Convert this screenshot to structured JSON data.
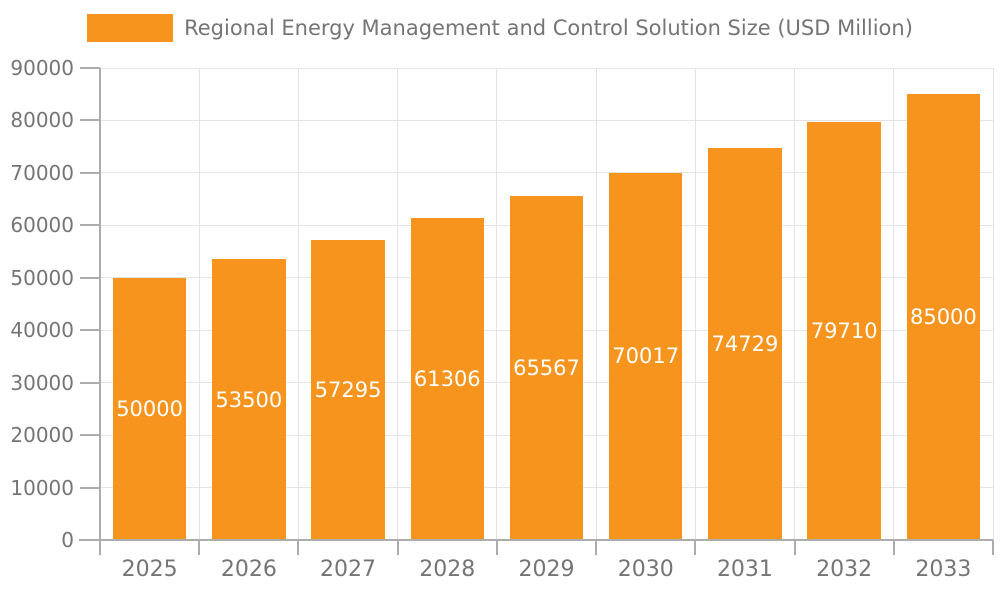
{
  "window": {
    "background": "#FFFFFF"
  },
  "legend": {
    "position": "top-center",
    "items": [
      {
        "label": "Regional Energy Management and Control Solution Size (USD Million)",
        "swatch_color": "#F7941E"
      }
    ]
  },
  "chart_data": {
    "type": "bar",
    "title": "Regional Energy Management and Control Solution Size (USD Million)",
    "xlabel": "",
    "ylabel": "",
    "categories": [
      "2025",
      "2026",
      "2027",
      "2028",
      "2029",
      "2030",
      "2031",
      "2032",
      "2033"
    ],
    "values": [
      50000,
      53500,
      57295,
      61306,
      65567,
      70017,
      74729,
      79710,
      85000
    ],
    "value_labels": [
      "50000",
      "53500",
      "57295",
      "61306",
      "65567",
      "70017",
      "74729",
      "79710",
      "85000"
    ],
    "ylim": [
      0,
      90000
    ],
    "y_ticks": [
      0,
      10000,
      20000,
      30000,
      40000,
      50000,
      60000,
      70000,
      80000,
      90000
    ],
    "y_tick_labels": [
      "0",
      "10000",
      "20000",
      "30000",
      "40000",
      "50000",
      "60000",
      "70000",
      "80000",
      "90000"
    ],
    "grid": true,
    "legend_position": "top",
    "bar_slot_fraction": 0.74,
    "colors": {
      "bar": "#F7941E",
      "bar_label": "#FFFFFF",
      "axis_text": "#757575",
      "axis_line": "#ADADAD",
      "gridline": "#E4E4E4",
      "background": "#FFFFFF"
    }
  }
}
